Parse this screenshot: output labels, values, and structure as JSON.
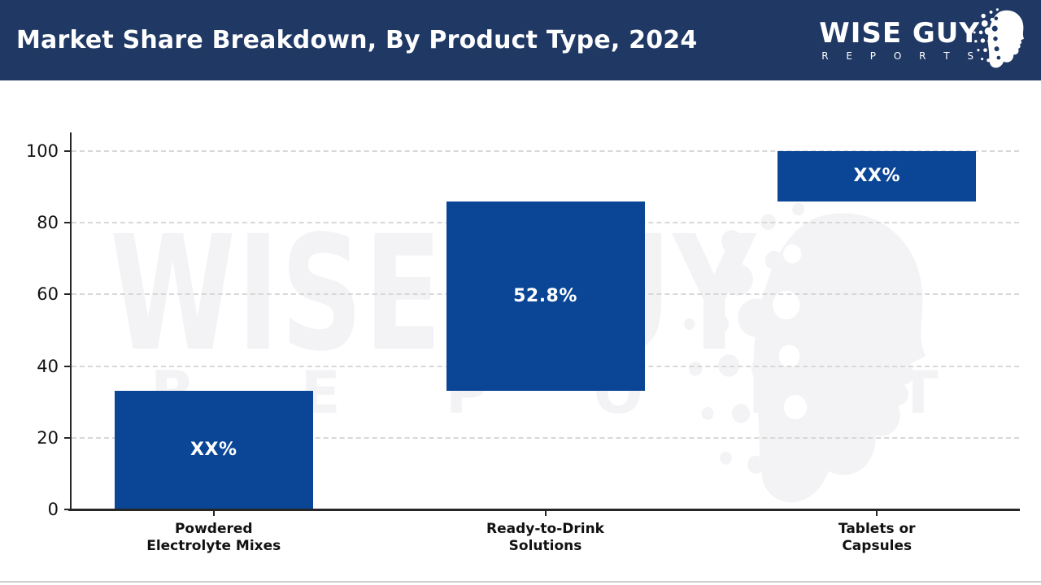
{
  "header": {
    "title": "Market Share Breakdown, By Product Type, 2024",
    "bg_color": "#1f3864",
    "logo": {
      "name": "WISE GUY",
      "subname": "R E P O R T S"
    }
  },
  "watermark": {
    "big_text": "WISE GUY",
    "sub_text": "R E P O R T S"
  },
  "chart_data": {
    "type": "bar",
    "subtype": "stacked-waterfall-segments",
    "title": "Market Share Breakdown, By Product Type, 2024",
    "categories": [
      "Powdered Electrolyte Mixes",
      "Ready-to-Drink Solutions",
      "Tablets or Capsules"
    ],
    "bars": [
      {
        "category_lines": [
          "Powdered",
          "Electrolyte Mixes"
        ],
        "start": 0,
        "end": 33.2,
        "value": 33.2,
        "value_label": "XX%"
      },
      {
        "category_lines": [
          "Ready-to-Drink",
          "Solutions"
        ],
        "start": 33.2,
        "end": 86.0,
        "value": 52.8,
        "value_label": "52.8%"
      },
      {
        "category_lines": [
          "Tablets or",
          "Capsules"
        ],
        "start": 86.0,
        "end": 100.0,
        "value": 14.0,
        "value_label": "XX%"
      }
    ],
    "ylim": [
      0,
      100
    ],
    "yticks": [
      0,
      20,
      40,
      60,
      80,
      100
    ],
    "xlabel": "",
    "ylabel": "",
    "grid": "horizontal-dashed",
    "legend": "none",
    "bar_color": "#0a4596",
    "value_label_color": "#ffffff"
  },
  "colors": {
    "header_bg": "#1f3864",
    "bar": "#0a4596",
    "watermark": "#f3f3f5",
    "gridline": "#d8d8d8",
    "axis": "#262626",
    "bottom_line": "#cccccc"
  }
}
